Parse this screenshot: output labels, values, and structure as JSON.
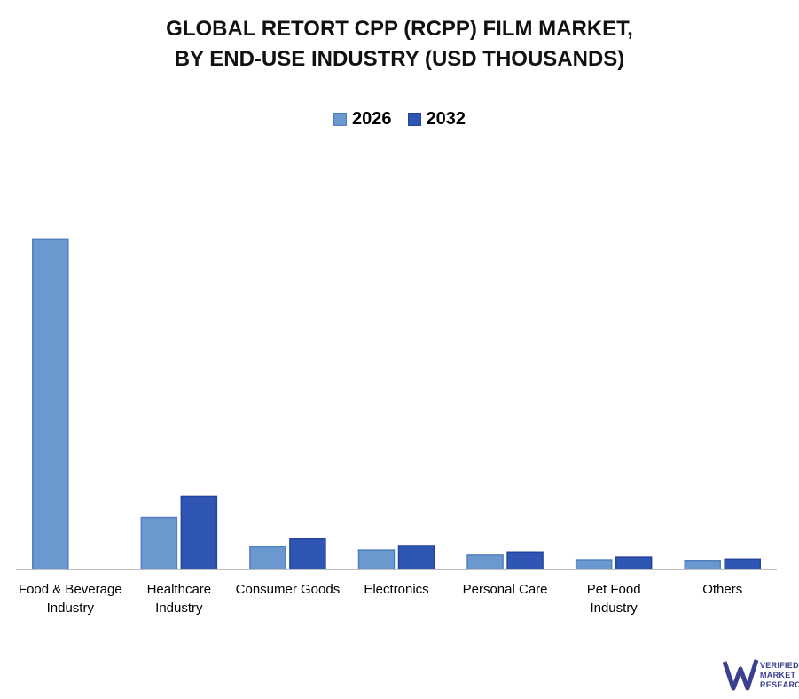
{
  "chart_data": {
    "type": "bar",
    "title_lines": [
      "GLOBAL RETORT CPP (RCPP) FILM MARKET,",
      "BY END-USE INDUSTRY (USD THOUSANDS)"
    ],
    "categories": [
      [
        "Food & Beverage",
        "Industry"
      ],
      [
        "Healthcare",
        "Industry"
      ],
      [
        "Consumer Goods"
      ],
      [
        "Electronics"
      ],
      [
        "Personal Care"
      ],
      [
        "Pet Food",
        "Industry"
      ],
      [
        "Others"
      ]
    ],
    "series": [
      {
        "name": "2026",
        "color": "#6b98cf",
        "stroke": "#4f7fbf",
        "values": [
          510,
          80,
          35,
          30,
          22,
          15,
          14
        ]
      },
      {
        "name": "2032",
        "color": "#2f56b4",
        "stroke": "#23449a",
        "values": [
          null,
          113,
          47,
          37,
          27,
          19,
          16
        ]
      }
    ],
    "ylim": [
      0,
      520
    ],
    "legend_position": "top-center",
    "grid": false
  },
  "logo": {
    "lines": [
      "VERIFIED",
      "MARKET",
      "RESEARCH"
    ]
  }
}
